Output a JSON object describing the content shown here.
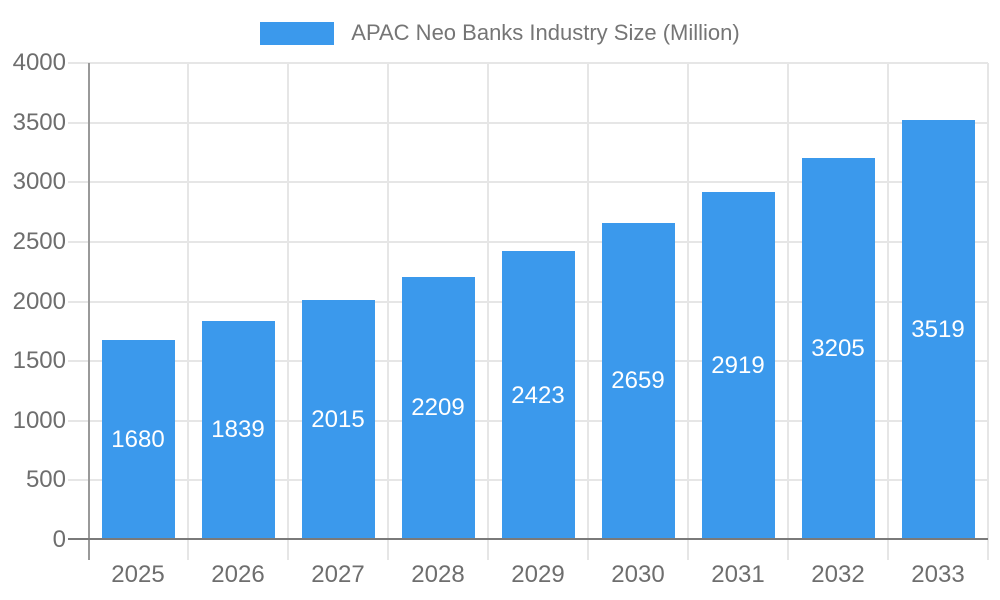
{
  "chart_data": {
    "type": "bar",
    "title": "APAC Neo Banks Industry Size (Million)",
    "legend": {
      "position": "top",
      "items": [
        {
          "label": "APAC Neo Banks Industry Size (Million)",
          "color": "#3B99EC"
        }
      ]
    },
    "categories": [
      "2025",
      "2026",
      "2027",
      "2028",
      "2029",
      "2030",
      "2031",
      "2032",
      "2033"
    ],
    "series": [
      {
        "name": "APAC Neo Banks Industry Size (Million)",
        "values": [
          1680,
          1839,
          2015,
          2209,
          2423,
          2659,
          2919,
          3205,
          3519
        ]
      }
    ],
    "xlabel": "",
    "ylabel": "",
    "ylim": [
      0,
      4000
    ],
    "yticks": [
      0,
      500,
      1000,
      1500,
      2000,
      2500,
      3000,
      3500,
      4000
    ],
    "grid": true,
    "value_label_position": "inside-center"
  },
  "colors": {
    "bar": "#3B99EC",
    "bar_label": "#FFFFFF",
    "grid": "#E6E6E6",
    "axis": "#999999",
    "baseline": "#7A7A7A",
    "tick_text": "#6E6E6E",
    "legend_text": "#757575",
    "background": "#FFFFFF"
  }
}
